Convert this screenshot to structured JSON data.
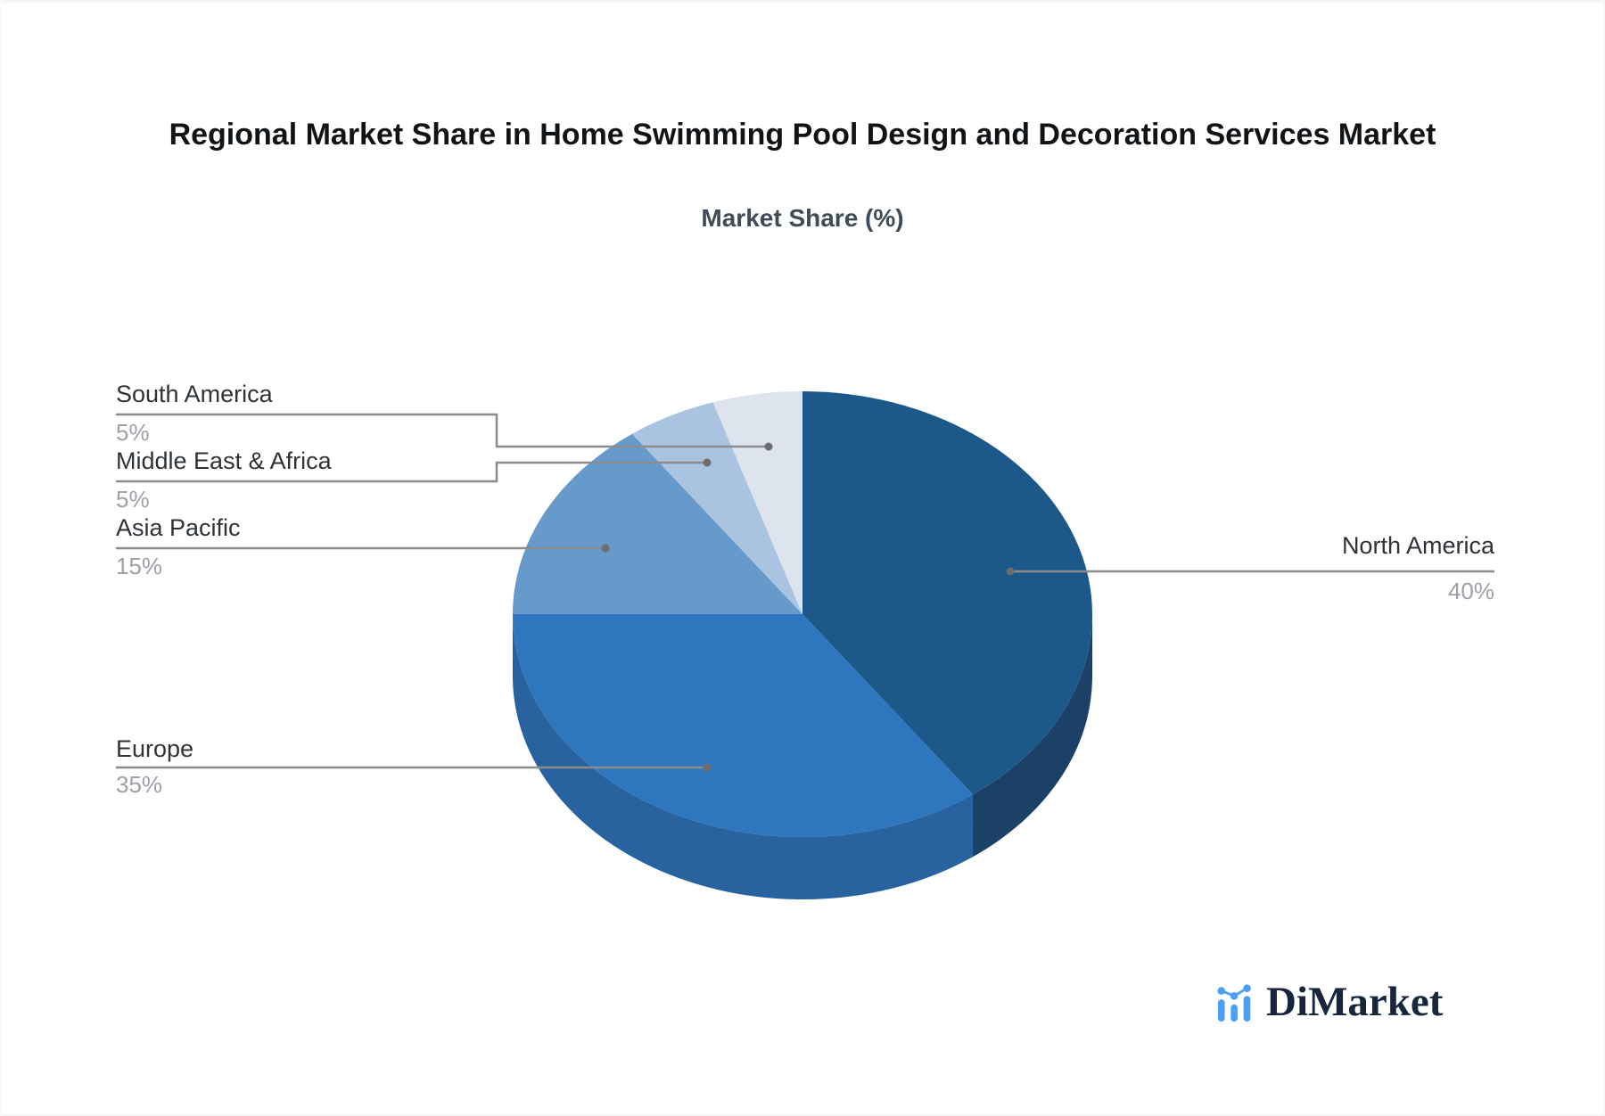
{
  "header": {
    "title": "Regional Market Share in Home Swimming Pool Design and Decoration Services Market",
    "subtitle": "Market Share (%)",
    "title_color": "#111417",
    "subtitle_color": "#3f4b57"
  },
  "chart_data": {
    "type": "pie",
    "style": "3d",
    "title": "Regional Market Share in Home Swimming Pool Design and Decoration Services Market",
    "subtitle": "Market Share (%)",
    "unit": "%",
    "start_angle_deg": 0,
    "direction": "clockwise",
    "legend_position": "callouts",
    "slices": [
      {
        "label": "North America",
        "value": 40,
        "pct_label": "40%",
        "color": "#1d588b",
        "side_color": "#1b4166"
      },
      {
        "label": "Europe",
        "value": 35,
        "pct_label": "35%",
        "color": "#2e76bd",
        "side_color": "#28639f"
      },
      {
        "label": "Asia Pacific",
        "value": 15,
        "pct_label": "15%",
        "color": "#6899cb",
        "side_color": "#4f7fb3"
      },
      {
        "label": "Middle East & Africa",
        "value": 5,
        "pct_label": "5%",
        "color": "#a9c3e0",
        "side_color": "#8aa8c9"
      },
      {
        "label": "South America",
        "value": 5,
        "pct_label": "5%",
        "color": "#dde4ee",
        "side_color": "#b9c5d6"
      }
    ],
    "callout_line_color": "#8c8c8c",
    "callout_dot_color": "#6d6d6d",
    "label_color": "#2e3338",
    "value_color": "#9ca1a8"
  },
  "logo": {
    "text": "DiMarket",
    "icon": "bar-line-chart-icon",
    "icon_color": "#4aa0f2",
    "text_color": "#17263c"
  }
}
